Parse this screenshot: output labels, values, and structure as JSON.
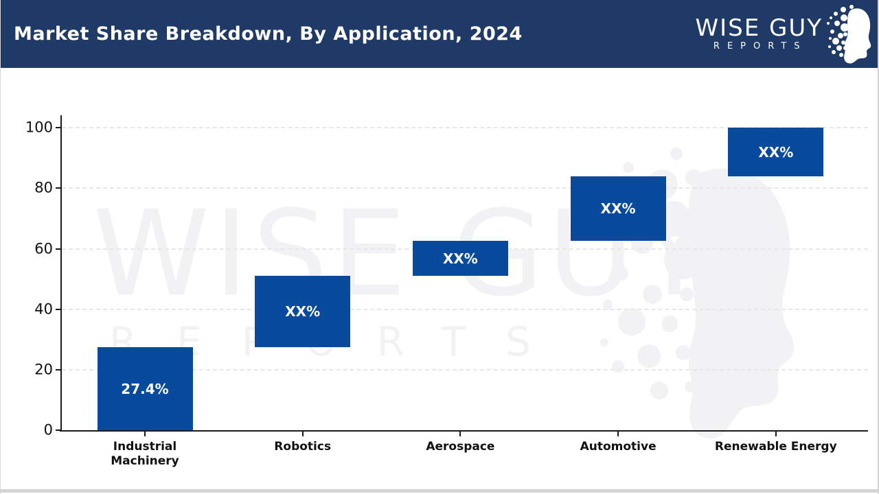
{
  "header": {
    "title": "Market Share Breakdown, By Application, 2024",
    "bg_color": "#203a68",
    "logo": {
      "line1": "WISE GUY",
      "line2": "REPORTS"
    }
  },
  "watermark": {
    "line1": "WISE GUY",
    "line2": "REPORTS"
  },
  "chart_data": {
    "type": "bar",
    "subtype": "waterfall",
    "title": "Market Share Breakdown, By Application, 2024",
    "categories": [
      "Industrial Machinery",
      "Robotics",
      "Aerospace",
      "Automotive",
      "Renewable Energy"
    ],
    "segments": [
      {
        "category": "Industrial Machinery",
        "start": 0,
        "end": 27.4,
        "label": "27.4%"
      },
      {
        "category": "Robotics",
        "start": 27.4,
        "end": 51.0,
        "label": "XX%"
      },
      {
        "category": "Aerospace",
        "start": 51.0,
        "end": 62.6,
        "label": "XX%"
      },
      {
        "category": "Automotive",
        "start": 62.6,
        "end": 84.0,
        "label": "XX%"
      },
      {
        "category": "Renewable Energy",
        "start": 84.0,
        "end": 100.0,
        "label": "XX%"
      }
    ],
    "y_ticks": [
      0,
      20,
      40,
      60,
      80,
      100
    ],
    "ylim": [
      0,
      100
    ],
    "xlabel": "",
    "ylabel": "",
    "bar_color": "#084a9b",
    "grid": "horizontal-dashed",
    "legend_position": "none"
  }
}
